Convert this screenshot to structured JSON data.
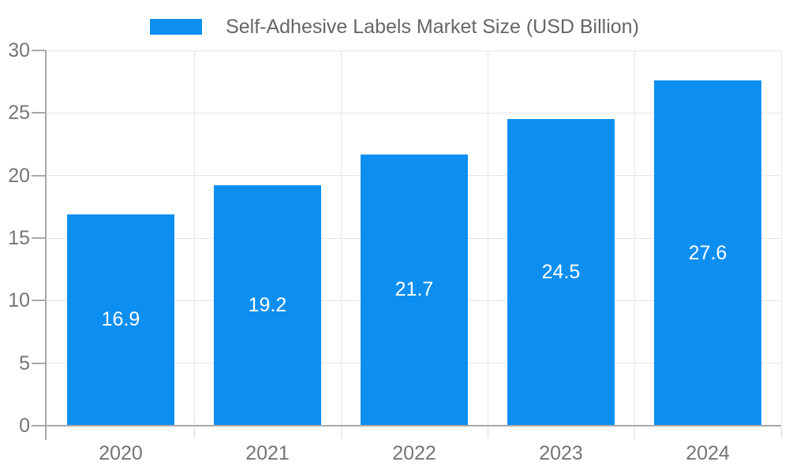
{
  "chart_data": {
    "type": "bar",
    "title": "Self-Adhesive Labels Market Size (USD Billion)",
    "categories": [
      "2020",
      "2021",
      "2022",
      "2023",
      "2024"
    ],
    "values": [
      16.9,
      19.2,
      21.7,
      24.5,
      27.6
    ],
    "value_labels": [
      "16.9",
      "19.2",
      "21.7",
      "24.5",
      "27.6"
    ],
    "xlabel": "",
    "ylabel": "",
    "ylim": [
      0,
      30
    ],
    "yticks": [
      0,
      5,
      10,
      15,
      20,
      25,
      30
    ],
    "ytick_labels": [
      "0",
      "5",
      "10",
      "15",
      "20",
      "25",
      "30"
    ],
    "grid": true,
    "legend_position": "top",
    "colors": {
      "bar": "#0d8ff2",
      "value_label": "#ffffff",
      "title_text": "#666666",
      "axis_text": "#757575",
      "gridline": "#e6e6e6",
      "axis_line": "#a8a8a8",
      "minor_tick": "#d9d9d9",
      "background": "#ffffff"
    }
  }
}
